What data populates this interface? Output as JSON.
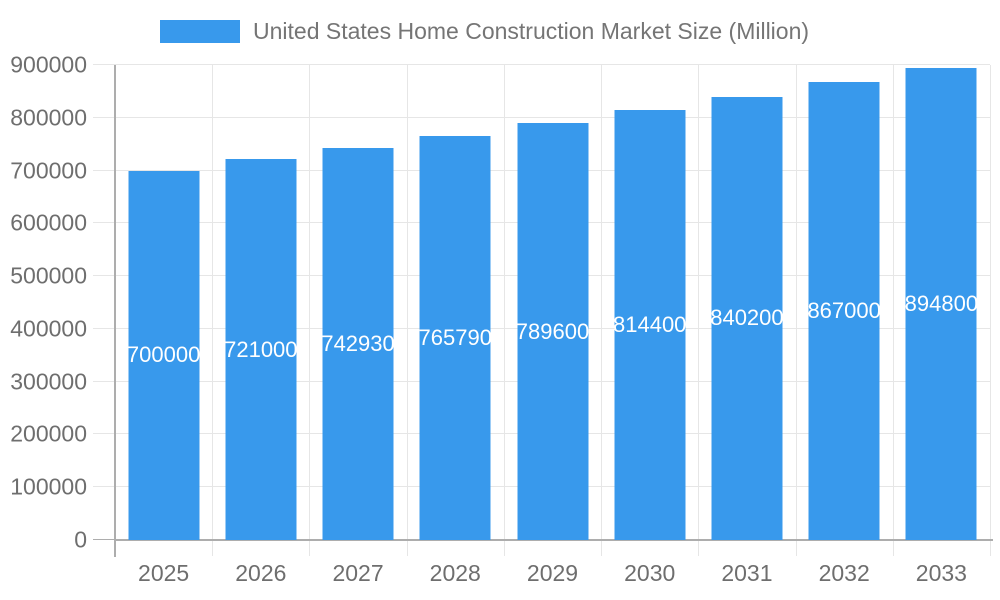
{
  "chart_data": {
    "type": "bar",
    "title": "United States Home Construction Market Size (Million)",
    "legend": {
      "position": "top",
      "label": "United States Home Construction Market Size (Million)"
    },
    "categories": [
      "2025",
      "2026",
      "2027",
      "2028",
      "2029",
      "2030",
      "2031",
      "2032",
      "2033"
    ],
    "series": [
      {
        "name": "United States Home Construction Market Size (Million)",
        "values": [
          700000,
          721000,
          742930,
          765790,
          789600,
          814400,
          840200,
          867000,
          894800
        ]
      }
    ],
    "data_labels": [
      "700000",
      "721000",
      "742930",
      "765790",
      "789600",
      "814400",
      "840200",
      "867000",
      "894800"
    ],
    "xlabel": "",
    "ylabel": "",
    "ylim": [
      0,
      900000
    ],
    "ytick_step": 100000,
    "ytick_labels": [
      "0",
      "100000",
      "200000",
      "300000",
      "400000",
      "500000",
      "600000",
      "700000",
      "800000",
      "900000"
    ],
    "grid": true,
    "colors": {
      "bar": "#3899EC",
      "bar_label": "#FFFFFF",
      "grid": "#E6E6E6",
      "axis_line": "#ADADAD",
      "axis_text": "#6E6E6E",
      "legend_text": "#757575"
    }
  }
}
